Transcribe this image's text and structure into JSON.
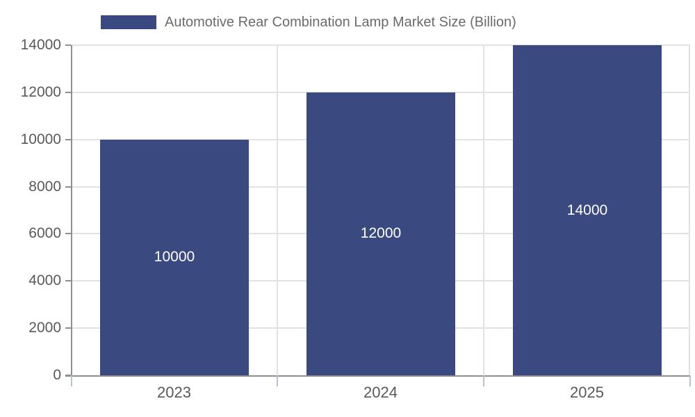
{
  "legend": {
    "label": "Automotive Rear Combination Lamp Market Size (Billion)"
  },
  "chart_data": {
    "type": "bar",
    "title": "Automotive Rear Combination Lamp Market Size (Billion)",
    "categories": [
      "2023",
      "2024",
      "2025"
    ],
    "values": [
      10000,
      12000,
      14000
    ],
    "bar_labels": [
      "10000",
      "12000",
      "14000"
    ],
    "xlabel": "",
    "ylabel": "",
    "ylim": [
      0,
      14000
    ],
    "ytick_step": 2000,
    "ytick_labels": [
      "0",
      "2000",
      "4000",
      "6000",
      "8000",
      "10000",
      "12000",
      "14000"
    ],
    "grid": true,
    "legend_position": "top-left",
    "colors": {
      "bar": "#3a4a80",
      "bar_label": "#ffffff",
      "grid": "#e2e2e2",
      "axis": "#8f8f8f",
      "tick_label": "#595959",
      "title": "#6b6b6b",
      "boundary_tick": "#b9c1d6"
    }
  }
}
